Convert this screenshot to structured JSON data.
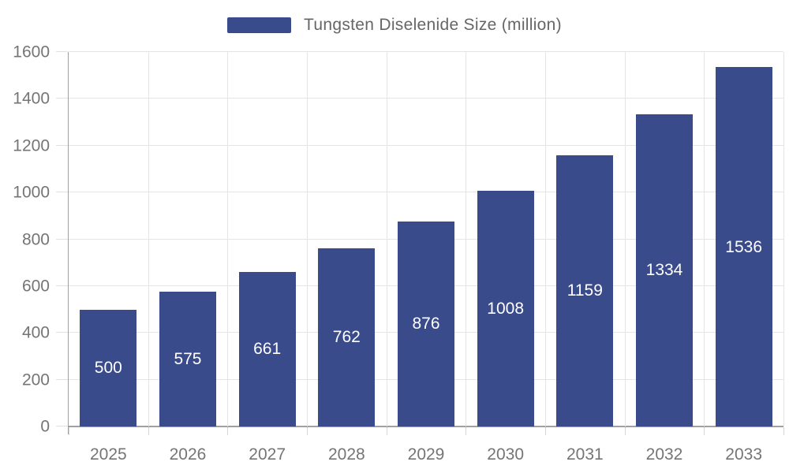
{
  "legend": {
    "label": "Tungsten Diselenide Size (million)"
  },
  "chart_data": {
    "type": "bar",
    "title": "Tungsten Diselenide Size (million)",
    "series_name": "Tungsten Diselenide Size (million)",
    "categories": [
      "2025",
      "2026",
      "2027",
      "2028",
      "2029",
      "2030",
      "2031",
      "2032",
      "2033"
    ],
    "values": [
      500,
      575,
      661,
      762,
      876,
      1008,
      1159,
      1334,
      1536
    ],
    "xlabel": "",
    "ylabel": "",
    "ylim": [
      0,
      1600
    ],
    "ytick_interval": 200,
    "grid": true,
    "legend_position": "top-center",
    "bar_color": "#3A4B8C",
    "value_label_color": "#ffffff",
    "value_label_position": "inside-center"
  }
}
